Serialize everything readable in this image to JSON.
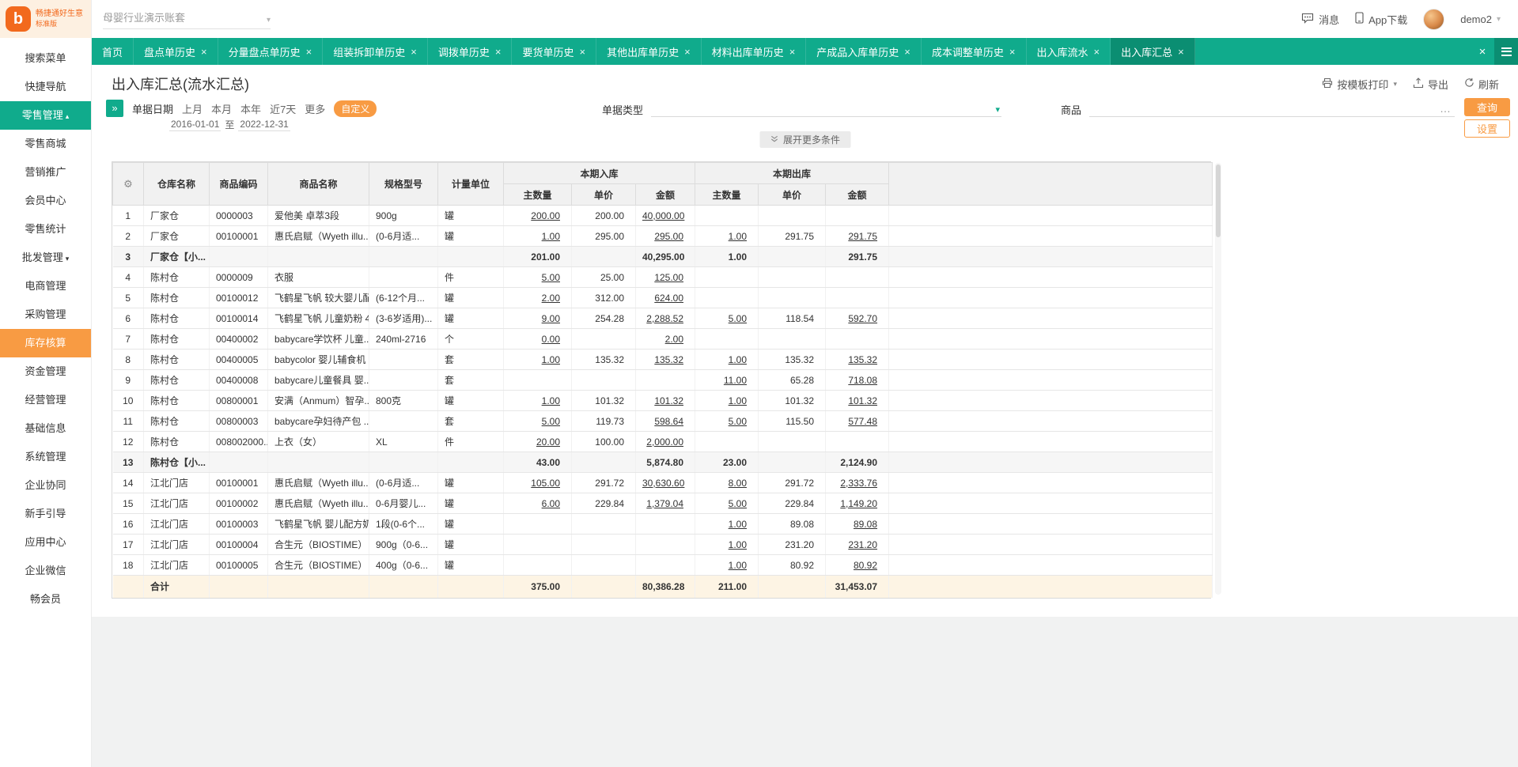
{
  "brand": {
    "logo_letter": "b",
    "name": "畅捷通好生意",
    "edition": "标准版"
  },
  "topbar": {
    "account": "母婴行业演示账套",
    "messages": "消息",
    "app_download": "App下载",
    "username": "demo2"
  },
  "sidebar": {
    "items": [
      {
        "label": "搜索菜单"
      },
      {
        "label": "快捷导航"
      },
      {
        "label": "零售管理",
        "open": true,
        "caret": "up"
      },
      {
        "label": "零售商城"
      },
      {
        "label": "营销推广"
      },
      {
        "label": "会员中心"
      },
      {
        "label": "零售统计"
      },
      {
        "label": "批发管理",
        "caret": "down"
      },
      {
        "label": "电商管理"
      },
      {
        "label": "采购管理"
      },
      {
        "label": "库存核算",
        "active": true
      },
      {
        "label": "资金管理"
      },
      {
        "label": "经营管理"
      },
      {
        "label": "基础信息"
      },
      {
        "label": "系统管理"
      },
      {
        "label": "企业协同"
      },
      {
        "label": "新手引导"
      },
      {
        "label": "应用中心"
      },
      {
        "label": "企业微信"
      },
      {
        "label": "畅会员"
      }
    ]
  },
  "tabs": [
    {
      "label": "首页"
    },
    {
      "label": "盘点单历史",
      "closable": true
    },
    {
      "label": "分量盘点单历史",
      "closable": true
    },
    {
      "label": "组装拆卸单历史",
      "closable": true
    },
    {
      "label": "调拨单历史",
      "closable": true
    },
    {
      "label": "要货单历史",
      "closable": true
    },
    {
      "label": "其他出库单历史",
      "closable": true
    },
    {
      "label": "材料出库单历史",
      "closable": true
    },
    {
      "label": "产成品入库单历史",
      "closable": true
    },
    {
      "label": "成本调整单历史",
      "closable": true
    },
    {
      "label": "出入库流水",
      "closable": true
    },
    {
      "label": "出入库汇总",
      "closable": true,
      "active": true
    }
  ],
  "page": {
    "title": "出入库汇总(流水汇总)",
    "print": "按模板打印",
    "export": "导出",
    "refresh": "刷新"
  },
  "filters": {
    "date_label": "单据日期",
    "quick_ranges": [
      "上月",
      "本月",
      "本年",
      "近7天",
      "更多"
    ],
    "custom": "自定义",
    "date_from": "2016-01-01",
    "date_join": "至",
    "date_to": "2022-12-31",
    "doc_type_label": "单据类型",
    "product_label": "商品",
    "product_more": "…",
    "search": "查询",
    "settings": "设置",
    "expand_more": "展开更多条件"
  },
  "table": {
    "header": {
      "warehouse": "仓库名称",
      "code": "商品编码",
      "name": "商品名称",
      "spec": "规格型号",
      "unit": "计量单位",
      "in_group": "本期入库",
      "out_group": "本期出库",
      "qty": "主数量",
      "price": "单价",
      "amount": "金额"
    },
    "rows": [
      {
        "type": "data",
        "num": "1",
        "warehouse": "厂家仓",
        "code": "0000003",
        "name": "爱他美 卓萃3段",
        "spec": "900g",
        "unit": "罐",
        "in_qty": "200.00",
        "in_price": "200.00",
        "in_amt": "40,000.00",
        "out_qty": "",
        "out_price": "",
        "out_amt": ""
      },
      {
        "type": "data",
        "num": "2",
        "warehouse": "厂家仓",
        "code": "00100001",
        "name": "惠氏启赋（Wyeth illu...",
        "spec": "(0-6月适...",
        "unit": "罐",
        "in_qty": "1.00",
        "in_price": "295.00",
        "in_amt": "295.00",
        "out_qty": "1.00",
        "out_price": "291.75",
        "out_amt": "291.75"
      },
      {
        "type": "subtotal",
        "num": "3",
        "warehouse": "厂家仓【小...",
        "code": "",
        "name": "",
        "spec": "",
        "unit": "",
        "in_qty": "201.00",
        "in_price": "",
        "in_amt": "40,295.00",
        "out_qty": "1.00",
        "out_price": "",
        "out_amt": "291.75"
      },
      {
        "type": "data",
        "num": "4",
        "warehouse": "陈村仓",
        "code": "0000009",
        "name": "衣服",
        "spec": "",
        "unit": "件",
        "in_qty": "5.00",
        "in_price": "25.00",
        "in_amt": "125.00",
        "out_qty": "",
        "out_price": "",
        "out_amt": ""
      },
      {
        "type": "data",
        "num": "5",
        "warehouse": "陈村仓",
        "code": "00100012",
        "name": "飞鹤星飞帆 较大婴儿配...",
        "spec": "(6-12个月...",
        "unit": "罐",
        "in_qty": "2.00",
        "in_price": "312.00",
        "in_amt": "624.00",
        "out_qty": "",
        "out_price": "",
        "out_amt": ""
      },
      {
        "type": "data",
        "num": "6",
        "warehouse": "陈村仓",
        "code": "00100014",
        "name": "飞鹤星飞帆 儿童奶粉 4...",
        "spec": "(3-6岁适用)...",
        "unit": "罐",
        "in_qty": "9.00",
        "in_price": "254.28",
        "in_amt": "2,288.52",
        "out_qty": "5.00",
        "out_price": "118.54",
        "out_amt": "592.70"
      },
      {
        "type": "data",
        "num": "7",
        "warehouse": "陈村仓",
        "code": "00400002",
        "name": "babycare学饮杯 儿童...",
        "spec": "240ml-2716",
        "unit": "个",
        "in_qty": "0.00",
        "in_price": "",
        "in_amt": "2.00",
        "out_qty": "",
        "out_price": "",
        "out_amt": ""
      },
      {
        "type": "data",
        "num": "8",
        "warehouse": "陈村仓",
        "code": "00400005",
        "name": "babycolor 婴儿辅食机 ...",
        "spec": "",
        "unit": "套",
        "in_qty": "1.00",
        "in_price": "135.32",
        "in_amt": "135.32",
        "out_qty": "1.00",
        "out_price": "135.32",
        "out_amt": "135.32"
      },
      {
        "type": "data",
        "num": "9",
        "warehouse": "陈村仓",
        "code": "00400008",
        "name": "babycare儿童餐具 婴...",
        "spec": "",
        "unit": "套",
        "in_qty": "",
        "in_price": "",
        "in_amt": "",
        "out_qty": "11.00",
        "out_price": "65.28",
        "out_amt": "718.08"
      },
      {
        "type": "data",
        "num": "10",
        "warehouse": "陈村仓",
        "code": "00800001",
        "name": "安满（Anmum）智孕...",
        "spec": "800克",
        "unit": "罐",
        "in_qty": "1.00",
        "in_price": "101.32",
        "in_amt": "101.32",
        "out_qty": "1.00",
        "out_price": "101.32",
        "out_amt": "101.32"
      },
      {
        "type": "data",
        "num": "11",
        "warehouse": "陈村仓",
        "code": "00800003",
        "name": "babycare孕妇待产包 ...",
        "spec": "",
        "unit": "套",
        "in_qty": "5.00",
        "in_price": "119.73",
        "in_amt": "598.64",
        "out_qty": "5.00",
        "out_price": "115.50",
        "out_amt": "577.48"
      },
      {
        "type": "data",
        "num": "12",
        "warehouse": "陈村仓",
        "code": "008002000...",
        "name": "上衣（女）",
        "spec": "XL",
        "unit": "件",
        "in_qty": "20.00",
        "in_price": "100.00",
        "in_amt": "2,000.00",
        "out_qty": "",
        "out_price": "",
        "out_amt": ""
      },
      {
        "type": "subtotal",
        "num": "13",
        "warehouse": "陈村仓【小...",
        "code": "",
        "name": "",
        "spec": "",
        "unit": "",
        "in_qty": "43.00",
        "in_price": "",
        "in_amt": "5,874.80",
        "out_qty": "23.00",
        "out_price": "",
        "out_amt": "2,124.90"
      },
      {
        "type": "data",
        "num": "14",
        "warehouse": "江北门店",
        "code": "00100001",
        "name": "惠氏启赋（Wyeth illu...",
        "spec": "(0-6月适...",
        "unit": "罐",
        "in_qty": "105.00",
        "in_price": "291.72",
        "in_amt": "30,630.60",
        "out_qty": "8.00",
        "out_price": "291.72",
        "out_amt": "2,333.76"
      },
      {
        "type": "data",
        "num": "15",
        "warehouse": "江北门店",
        "code": "00100002",
        "name": "惠氏启赋（Wyeth illu...",
        "spec": "0-6月婴儿...",
        "unit": "罐",
        "in_qty": "6.00",
        "in_price": "229.84",
        "in_amt": "1,379.04",
        "out_qty": "5.00",
        "out_price": "229.84",
        "out_amt": "1,149.20"
      },
      {
        "type": "data",
        "num": "16",
        "warehouse": "江北门店",
        "code": "00100003",
        "name": "飞鹤星飞帆 婴儿配方奶...",
        "spec": "1段(0-6个...",
        "unit": "罐",
        "in_qty": "",
        "in_price": "",
        "in_amt": "",
        "out_qty": "1.00",
        "out_price": "89.08",
        "out_amt": "89.08"
      },
      {
        "type": "data",
        "num": "17",
        "warehouse": "江北门店",
        "code": "00100004",
        "name": "合生元（BIOSTIME） ...",
        "spec": "900g（0-6...",
        "unit": "罐",
        "in_qty": "",
        "in_price": "",
        "in_amt": "",
        "out_qty": "1.00",
        "out_price": "231.20",
        "out_amt": "231.20"
      },
      {
        "type": "data",
        "num": "18",
        "warehouse": "江北门店",
        "code": "00100005",
        "name": "合生元（BIOSTIME） ...",
        "spec": "400g（0-6...",
        "unit": "罐",
        "in_qty": "",
        "in_price": "",
        "in_amt": "",
        "out_qty": "1.00",
        "out_price": "80.92",
        "out_amt": "80.92"
      },
      {
        "type": "total",
        "num": "",
        "warehouse": "合计",
        "code": "",
        "name": "",
        "spec": "",
        "unit": "",
        "in_qty": "375.00",
        "in_price": "",
        "in_amt": "80,386.28",
        "out_qty": "211.00",
        "out_price": "",
        "out_amt": "31,453.07"
      }
    ]
  }
}
